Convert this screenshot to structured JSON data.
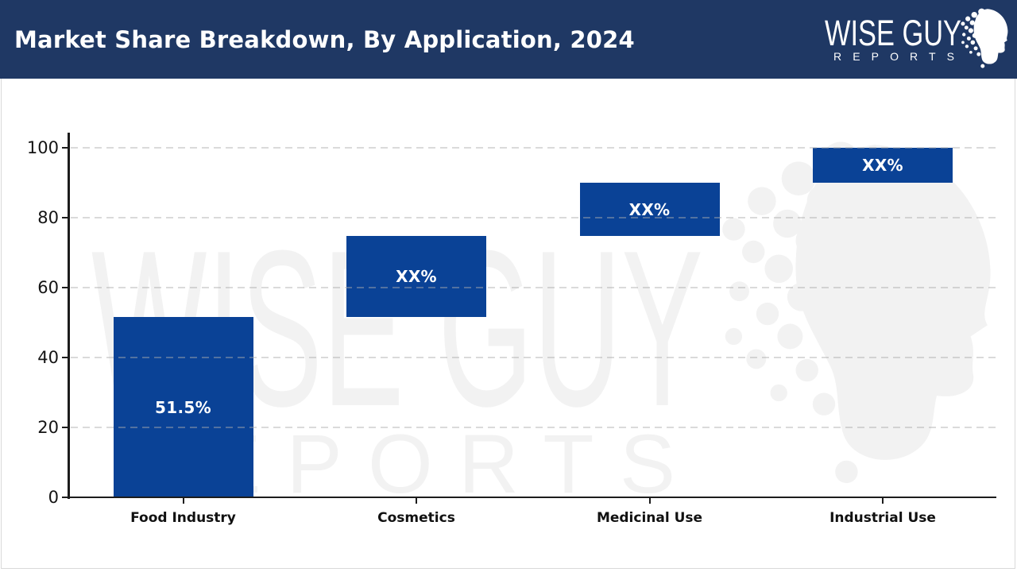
{
  "header": {
    "title": "Market Share Breakdown, By Application, 2024",
    "background_color": "#1f3864",
    "logo": {
      "line1": "WISE GUY",
      "line2": "REPORTS"
    }
  },
  "chart_data": {
    "type": "bar",
    "subtype": "waterfall",
    "title": "Market Share Breakdown, By Application, 2024",
    "xlabel": "",
    "ylabel": "",
    "categories": [
      "Food Industry",
      "Cosmetics",
      "Medicinal Use",
      "Industrial Use"
    ],
    "series": [
      {
        "name": "Market Share (%)",
        "segments": [
          {
            "category": "Food Industry",
            "start": 0,
            "end": 51.5,
            "label": "51.5%"
          },
          {
            "category": "Cosmetics",
            "start": 51.5,
            "end": 74.7,
            "label": "XX%"
          },
          {
            "category": "Medicinal Use",
            "start": 74.7,
            "end": 90,
            "label": "XX%"
          },
          {
            "category": "Industrial Use",
            "start": 90,
            "end": 100,
            "label": "XX%"
          }
        ]
      }
    ],
    "ylim": [
      0,
      104
    ],
    "yticks": [
      0,
      20,
      40,
      60,
      80,
      100
    ],
    "grid": "horizontal-dashed",
    "legend": "none",
    "bar_color": "#0a4296",
    "bar_label_color": "#ffffff",
    "axis_color": "#1c1c1c",
    "grid_color": "#dedede",
    "watermark_color": "#f2f2f2"
  }
}
